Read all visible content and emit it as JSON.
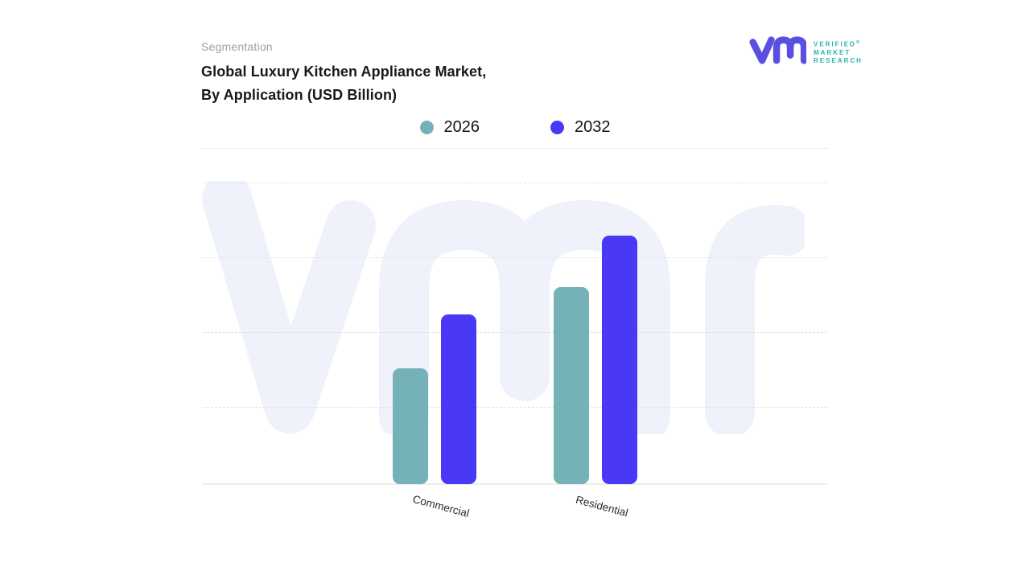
{
  "header": {
    "eyebrow": "Segmentation",
    "title_line1": "Global Luxury Kitchen Appliance Market,",
    "title_line2": "By Application (USD Billion)"
  },
  "logo": {
    "line1": "VERIFIED",
    "line2": "MARKET",
    "line3": "RESEARCH",
    "registered": "®",
    "mark_color": "#5a4fe0",
    "text_color": "#2ab3ab"
  },
  "legend": {
    "items": [
      {
        "label": "2026",
        "color": "#74b2b8"
      },
      {
        "label": "2032",
        "color": "#4938f5"
      }
    ]
  },
  "colors": {
    "series_2026": "#74b2b8",
    "series_2032": "#4938f5",
    "watermark": "#f0f2fb",
    "gridline": "#e1e1e5",
    "eyebrow_text": "#9aa0a6"
  },
  "chart_data": {
    "type": "bar",
    "title": "Global Luxury Kitchen Appliance Market, By Application (USD Billion)",
    "xlabel": "",
    "ylabel": "",
    "categories": [
      "Commercial",
      "Residential"
    ],
    "series": [
      {
        "name": "2026",
        "color": "#74b2b8",
        "values": [
          1.54,
          2.61
        ]
      },
      {
        "name": "2032",
        "color": "#4938f5",
        "values": [
          2.25,
          3.3
        ]
      }
    ],
    "ylim": [
      0,
      4
    ],
    "grid": "horizontal-dashed",
    "legend_position": "top-center",
    "note": "No y-axis tick labels are shown in the figure; values are estimated in gridline units (1 unit = one gridline interval, 4 intervals from baseline to top gridline)."
  }
}
